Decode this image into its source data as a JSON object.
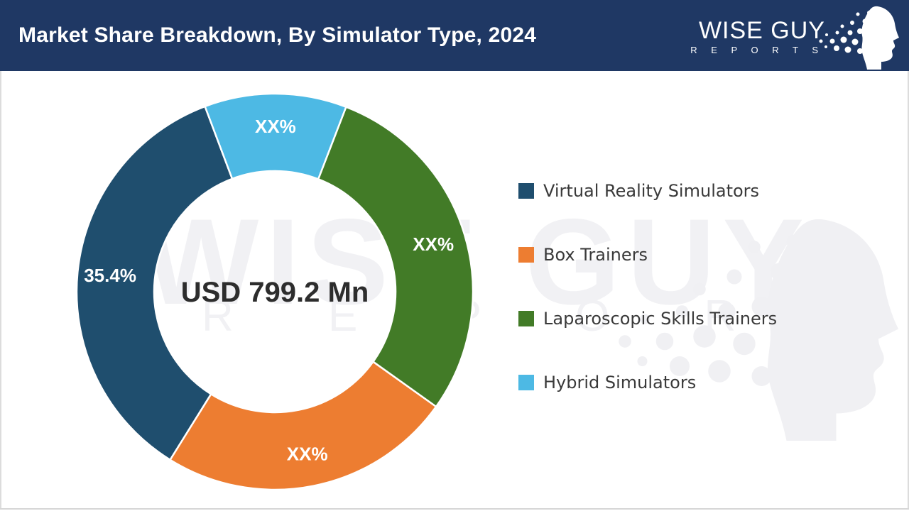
{
  "header": {
    "title": "Market Share Breakdown, By Simulator Type, 2024",
    "background_color": "#1f3864",
    "logo": {
      "line1": "WISE GUY",
      "line2": "R E P O R T S"
    }
  },
  "watermark": {
    "line1": "WISE GUY",
    "line2": "R E P O R T S"
  },
  "chart_data": {
    "type": "pie",
    "subtype": "donut",
    "title": "Market Share Breakdown, By Simulator Type, 2024",
    "center_label": "USD 799.2 Mn",
    "start_angle_deg": 211.9,
    "donut_hole_ratio": 0.61,
    "legend_position": "right",
    "segments": [
      {
        "id": "virtual-reality-simulators",
        "label": "Virtual Reality Simulators",
        "share_pct": 35.4,
        "display_label": "35.4%",
        "color": "#1f4e6e"
      },
      {
        "id": "hybrid-simulators",
        "label": "Hybrid Simulators",
        "share_pct": 11.6,
        "display_label": "XX%",
        "color": "#4db9e4"
      },
      {
        "id": "laparoscopic-skills-trainers",
        "label": "Laparoscopic Skills Trainers",
        "share_pct": 29.0,
        "display_label": "XX%",
        "color": "#427b27"
      },
      {
        "id": "box-trainers",
        "label": "Box Trainers",
        "share_pct": 24.0,
        "display_label": "XX%",
        "color": "#ed7d31"
      }
    ]
  },
  "legend": {
    "items": [
      {
        "label": "Virtual Reality Simulators",
        "color": "#1f4e6e"
      },
      {
        "label": "Box Trainers",
        "color": "#ed7d31"
      },
      {
        "label": "Laparoscopic Skills Trainers",
        "color": "#427b27"
      },
      {
        "label": "Hybrid Simulators",
        "color": "#4db9e4"
      }
    ]
  }
}
